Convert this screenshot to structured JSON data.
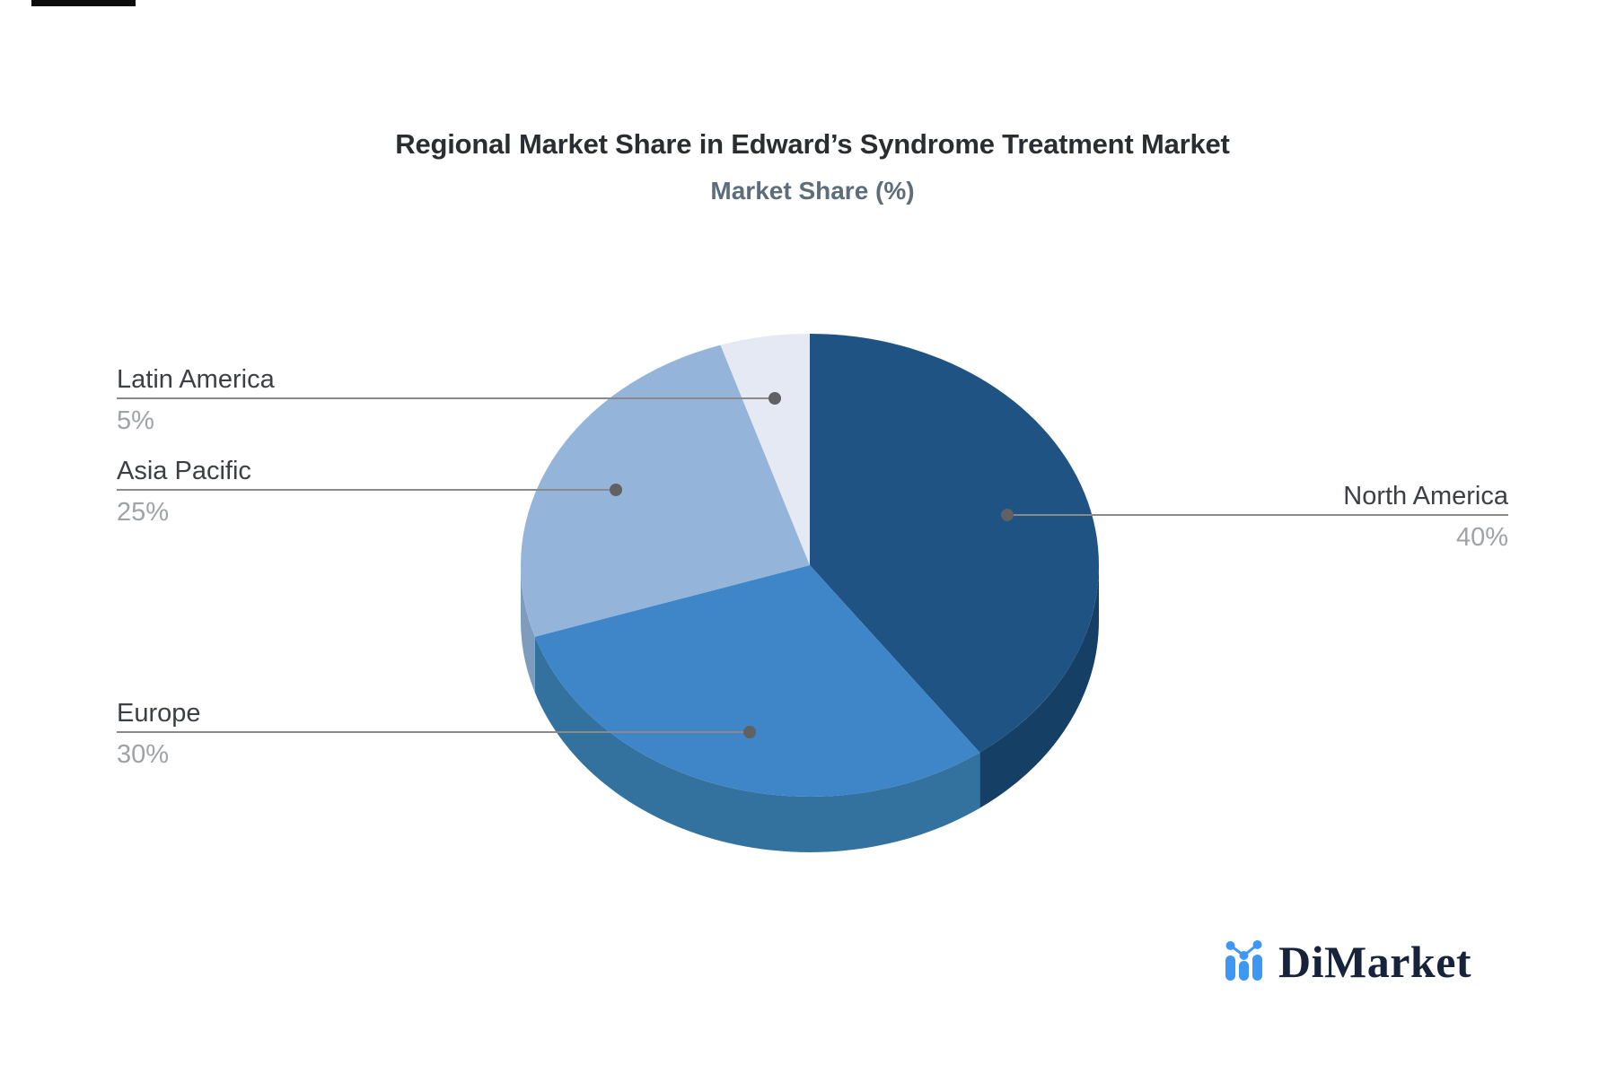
{
  "header": {
    "title": "Regional Market Share in Edward’s Syndrome Treatment Market",
    "subtitle": "Market Share (%)"
  },
  "chart_data": {
    "type": "pie",
    "title": "Regional Market Share in Edward’s Syndrome Treatment Market",
    "subtitle": "Market Share (%)",
    "unit": "%",
    "effect": "3d",
    "start_angle_deg": 0,
    "direction": "clockwise",
    "legend_position": "callout-labels",
    "series": [
      {
        "name": "North America",
        "value": 40,
        "label_pct": "40%",
        "color": "#1e5384",
        "side_color": "#163f66"
      },
      {
        "name": "Europe",
        "value": 30,
        "label_pct": "30%",
        "color": "#3e86c8",
        "side_color": "#33719f"
      },
      {
        "name": "Asia Pacific",
        "value": 25,
        "label_pct": "25%",
        "color": "#94b5d9",
        "side_color": "#7e9dbe"
      },
      {
        "name": "Latin America",
        "value": 5,
        "label_pct": "5%",
        "color": "#e4e9f3",
        "side_color": "#c3ccdb"
      }
    ]
  },
  "branding": {
    "logo_text": "DiMarket",
    "logo_color": "#17233b",
    "icon_color": "#3e97f3"
  },
  "style": {
    "leader_line_color": "#8a8a8a",
    "leader_dot_color": "#5f6164",
    "label_color": "#3c4044",
    "pct_color": "#9fa3a7"
  }
}
